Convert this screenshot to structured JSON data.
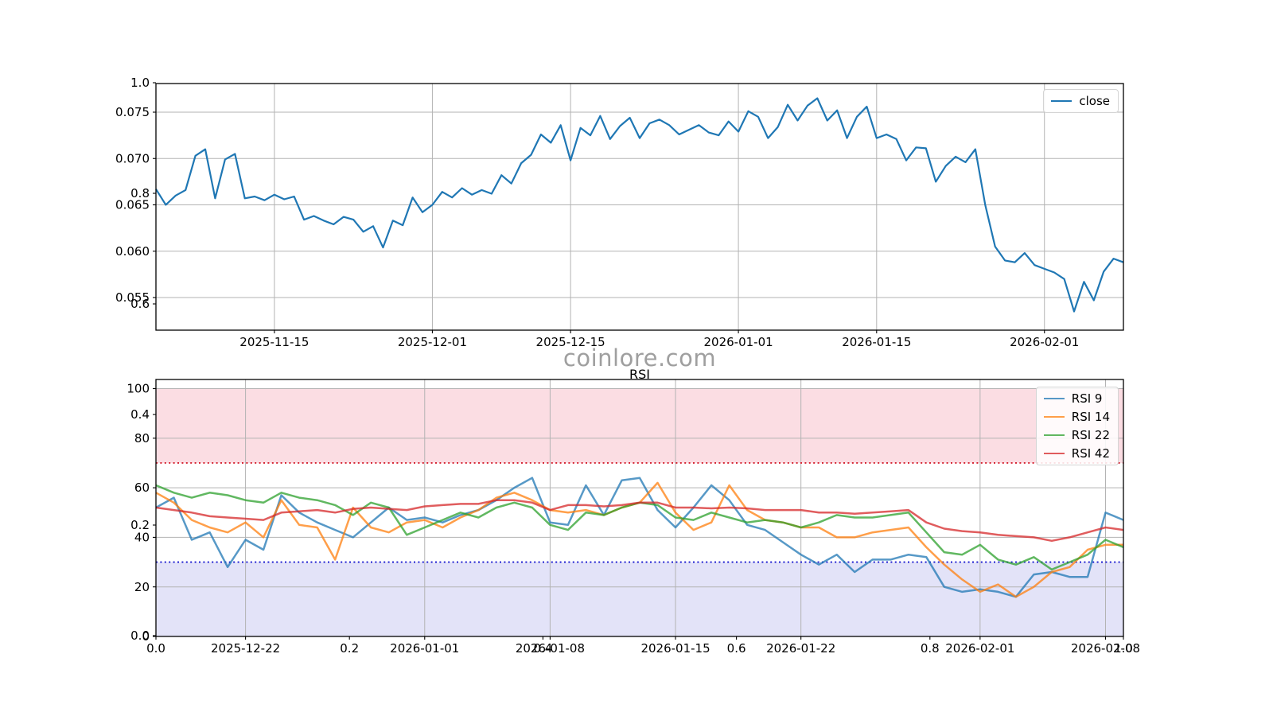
{
  "watermark": "coinlore.com",
  "rsi_title": "RSI",
  "colors": {
    "close_line": "#1f77b4",
    "rsi9": "rgba(31,119,180,0.75)",
    "rsi14": "rgba(255,127,14,0.75)",
    "rsi22": "rgba(44,160,44,0.75)",
    "rsi42": "rgba(214,39,40,0.75)",
    "overbought_band": "#fbdde3",
    "oversold_band": "#e3e3f8",
    "overbought_line": "#d41f2e",
    "oversold_line": "#1515cf",
    "grid": "#b3b3b3",
    "spine": "#000000",
    "watermark_gray": "#8a8a8a"
  },
  "overlay_axis": {
    "xtick_labels": [
      "0.0",
      "0.2",
      "0.4",
      "0.6",
      "0.8",
      "1.0"
    ],
    "xtick_values": [
      0.0,
      0.2,
      0.4,
      0.6,
      0.8,
      1.0
    ],
    "ytick_labels": [
      "0.0",
      "0.2",
      "0.4",
      "0.6",
      "0.8",
      "1.0"
    ],
    "ytick_values": [
      0.0,
      0.2,
      0.4,
      0.6,
      0.8,
      1.0
    ]
  },
  "chart_data": [
    {
      "type": "line",
      "panel": "price",
      "legend_position": "upper right",
      "grid": true,
      "ylim": [
        0.05148,
        0.07809
      ],
      "ytick_values": [
        0.055,
        0.06,
        0.065,
        0.07,
        0.075
      ],
      "ytick_labels": [
        "0.055",
        "0.060",
        "0.065",
        "0.070",
        "0.075"
      ],
      "xtick_dates": [
        "2025-11-15",
        "2025-12-01",
        "2025-12-15",
        "2026-01-01",
        "2026-01-15",
        "2026-02-01"
      ],
      "x": [
        "2025-11-03",
        "2025-11-04",
        "2025-11-05",
        "2025-11-06",
        "2025-11-07",
        "2025-11-08",
        "2025-11-09",
        "2025-11-10",
        "2025-11-11",
        "2025-11-12",
        "2025-11-13",
        "2025-11-14",
        "2025-11-15",
        "2025-11-16",
        "2025-11-17",
        "2025-11-18",
        "2025-11-19",
        "2025-11-20",
        "2025-11-21",
        "2025-11-22",
        "2025-11-23",
        "2025-11-24",
        "2025-11-25",
        "2025-11-26",
        "2025-11-27",
        "2025-11-28",
        "2025-11-29",
        "2025-11-30",
        "2025-12-01",
        "2025-12-02",
        "2025-12-03",
        "2025-12-04",
        "2025-12-05",
        "2025-12-06",
        "2025-12-07",
        "2025-12-08",
        "2025-12-09",
        "2025-12-10",
        "2025-12-11",
        "2025-12-12",
        "2025-12-13",
        "2025-12-14",
        "2025-12-15",
        "2025-12-16",
        "2025-12-17",
        "2025-12-18",
        "2025-12-19",
        "2025-12-20",
        "2025-12-21",
        "2025-12-22",
        "2025-12-23",
        "2025-12-24",
        "2025-12-25",
        "2025-12-26",
        "2025-12-27",
        "2025-12-28",
        "2025-12-29",
        "2025-12-30",
        "2025-12-31",
        "2026-01-01",
        "2026-01-02",
        "2026-01-03",
        "2026-01-04",
        "2026-01-05",
        "2026-01-06",
        "2026-01-07",
        "2026-01-08",
        "2026-01-09",
        "2026-01-10",
        "2026-01-11",
        "2026-01-12",
        "2026-01-13",
        "2026-01-14",
        "2026-01-15",
        "2026-01-16",
        "2026-01-17",
        "2026-01-18",
        "2026-01-19",
        "2026-01-20",
        "2026-01-21",
        "2026-01-22",
        "2026-01-23",
        "2026-01-24",
        "2026-01-25",
        "2026-01-26",
        "2026-01-27",
        "2026-01-28",
        "2026-01-29",
        "2026-01-30",
        "2026-01-31",
        "2026-02-01",
        "2026-02-02",
        "2026-02-03",
        "2026-02-04",
        "2026-02-05",
        "2026-02-06",
        "2026-02-07",
        "2026-02-08",
        "2026-02-09"
      ],
      "series": [
        {
          "name": "close",
          "color": "#1f77b4",
          "values": [
            0.0667,
            0.065,
            0.066,
            0.0666,
            0.0703,
            0.071,
            0.0657,
            0.0699,
            0.0705,
            0.0657,
            0.0659,
            0.0655,
            0.0661,
            0.0656,
            0.0659,
            0.0634,
            0.0638,
            0.0633,
            0.0629,
            0.0637,
            0.0634,
            0.0621,
            0.0627,
            0.0604,
            0.0633,
            0.0628,
            0.0658,
            0.0642,
            0.065,
            0.0664,
            0.0658,
            0.0668,
            0.0661,
            0.0666,
            0.0662,
            0.0682,
            0.0673,
            0.0695,
            0.0704,
            0.0726,
            0.0717,
            0.0736,
            0.0698,
            0.0733,
            0.0725,
            0.0746,
            0.0721,
            0.0735,
            0.0744,
            0.0722,
            0.0738,
            0.0742,
            0.0736,
            0.0726,
            0.0731,
            0.0736,
            0.0728,
            0.0725,
            0.074,
            0.0729,
            0.0751,
            0.0745,
            0.0722,
            0.0734,
            0.0758,
            0.0741,
            0.0757,
            0.0765,
            0.0741,
            0.0752,
            0.0722,
            0.0745,
            0.0756,
            0.0722,
            0.0726,
            0.0721,
            0.0698,
            0.0712,
            0.0711,
            0.0675,
            0.0692,
            0.0702,
            0.0696,
            0.071,
            0.065,
            0.0605,
            0.059,
            0.0588,
            0.0598,
            0.0585,
            0.0581,
            0.0577,
            0.057,
            0.0535,
            0.0567,
            0.0547,
            0.0578,
            0.0592,
            0.0588
          ]
        }
      ]
    },
    {
      "type": "line",
      "panel": "rsi",
      "legend_position": "upper right",
      "grid": true,
      "ylim": [
        0,
        103.7
      ],
      "ytick_values": [
        0,
        20,
        40,
        60,
        80,
        100
      ],
      "ytick_labels": [
        "0",
        "20",
        "40",
        "60",
        "80",
        "100"
      ],
      "xtick_dates": [
        "2025-12-22",
        "2026-01-01",
        "2026-01-08",
        "2026-01-15",
        "2026-01-22",
        "2026-02-01",
        "2026-02-08"
      ],
      "levels": [
        {
          "value": 70,
          "color": "#d41f2e",
          "style": "dotted"
        },
        {
          "value": 30,
          "color": "#1515cf",
          "style": "dotted"
        }
      ],
      "bands": [
        {
          "from": 70,
          "to": 100,
          "color": "#fbdde3"
        },
        {
          "from": 0,
          "to": 30,
          "color": "#e3e3f8"
        }
      ],
      "x": [
        "2025-12-17",
        "2025-12-18",
        "2025-12-19",
        "2025-12-20",
        "2025-12-21",
        "2025-12-22",
        "2025-12-23",
        "2025-12-24",
        "2025-12-25",
        "2025-12-26",
        "2025-12-27",
        "2025-12-28",
        "2025-12-29",
        "2025-12-30",
        "2025-12-31",
        "2026-01-01",
        "2026-01-02",
        "2026-01-03",
        "2026-01-04",
        "2026-01-05",
        "2026-01-06",
        "2026-01-07",
        "2026-01-08",
        "2026-01-09",
        "2026-01-10",
        "2026-01-11",
        "2026-01-12",
        "2026-01-13",
        "2026-01-14",
        "2026-01-15",
        "2026-01-16",
        "2026-01-17",
        "2026-01-18",
        "2026-01-19",
        "2026-01-20",
        "2026-01-21",
        "2026-01-22",
        "2026-01-23",
        "2026-01-24",
        "2026-01-25",
        "2026-01-26",
        "2026-01-27",
        "2026-01-28",
        "2026-01-29",
        "2026-01-30",
        "2026-01-31",
        "2026-02-01",
        "2026-02-02",
        "2026-02-03",
        "2026-02-04",
        "2026-02-05",
        "2026-02-06",
        "2026-02-07",
        "2026-02-08",
        "2026-02-09"
      ],
      "series": [
        {
          "name": "RSI 9",
          "color": "rgba(31,119,180,0.75)",
          "values": [
            52,
            56,
            39,
            42,
            28,
            39,
            35,
            57,
            50,
            46,
            43,
            40,
            46,
            52,
            47,
            48,
            46,
            49,
            51,
            55,
            60,
            64,
            46,
            45,
            61,
            49,
            63,
            64,
            51,
            44,
            52,
            61,
            55,
            45,
            43,
            38,
            33,
            29,
            33,
            26,
            31,
            31,
            33,
            32,
            20,
            18,
            19,
            18,
            16,
            25,
            26,
            24,
            24,
            50,
            47
          ]
        },
        {
          "name": "RSI 14",
          "color": "rgba(255,127,14,0.75)",
          "values": [
            58,
            54,
            47,
            44,
            42,
            46,
            40,
            55,
            45,
            44,
            31,
            52,
            44,
            42,
            46,
            47,
            44,
            48,
            51,
            56,
            58,
            55,
            51,
            50,
            51,
            49,
            52,
            54,
            62,
            50,
            43,
            46,
            61,
            51,
            47,
            46,
            44,
            44,
            40,
            40,
            42,
            43,
            44,
            36,
            29,
            23,
            18,
            21,
            16,
            20,
            26,
            28,
            35,
            37,
            37
          ]
        },
        {
          "name": "RSI 22",
          "color": "rgba(44,160,44,0.75)",
          "values": [
            61,
            58,
            56,
            58,
            57,
            55,
            54,
            58,
            56,
            55,
            53,
            49,
            54,
            52,
            41,
            44,
            47,
            50,
            48,
            52,
            54,
            52,
            45,
            43,
            50,
            49,
            52,
            54,
            53,
            48,
            47,
            50,
            48,
            46,
            47,
            46,
            44,
            46,
            49,
            48,
            48,
            49,
            50,
            42,
            34,
            33,
            37,
            31,
            29,
            32,
            27,
            30,
            33,
            39,
            36
          ]
        },
        {
          "name": "RSI 42",
          "color": "rgba(214,39,40,0.75)",
          "values": [
            52,
            51,
            50,
            48.5,
            48,
            47.5,
            47,
            50,
            50.5,
            51,
            50,
            51.5,
            52,
            51.5,
            51,
            52.5,
            53,
            53.5,
            53.5,
            55,
            55,
            54,
            51,
            53,
            53,
            52.5,
            53,
            54,
            54,
            52,
            52,
            51.7,
            52,
            51.7,
            51,
            51,
            51,
            50,
            50,
            49.5,
            50,
            50.5,
            51,
            46,
            43.5,
            42.5,
            42,
            41,
            40.5,
            40,
            38.6,
            40,
            42,
            44,
            43
          ]
        }
      ]
    }
  ]
}
